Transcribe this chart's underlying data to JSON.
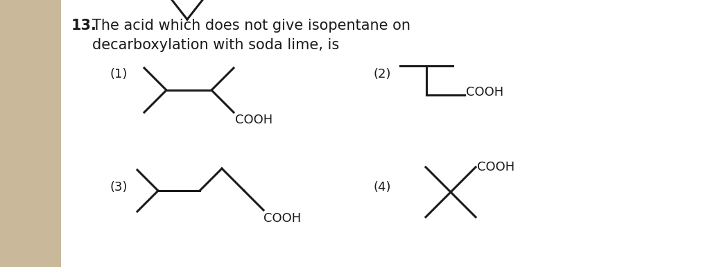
{
  "bg_color": "#ffffff",
  "question_number": "13.",
  "question_text_line1": "The acid which does not give isopentane on",
  "question_text_line2": "decarboxylation with soda lime, is",
  "text_color": "#1a1a1a",
  "label_color": "#1a1a1a",
  "line_color": "#1a1a1a",
  "left_panel_color": "#c9b99a",
  "figsize": [
    10.24,
    3.85
  ],
  "dpi": 100
}
